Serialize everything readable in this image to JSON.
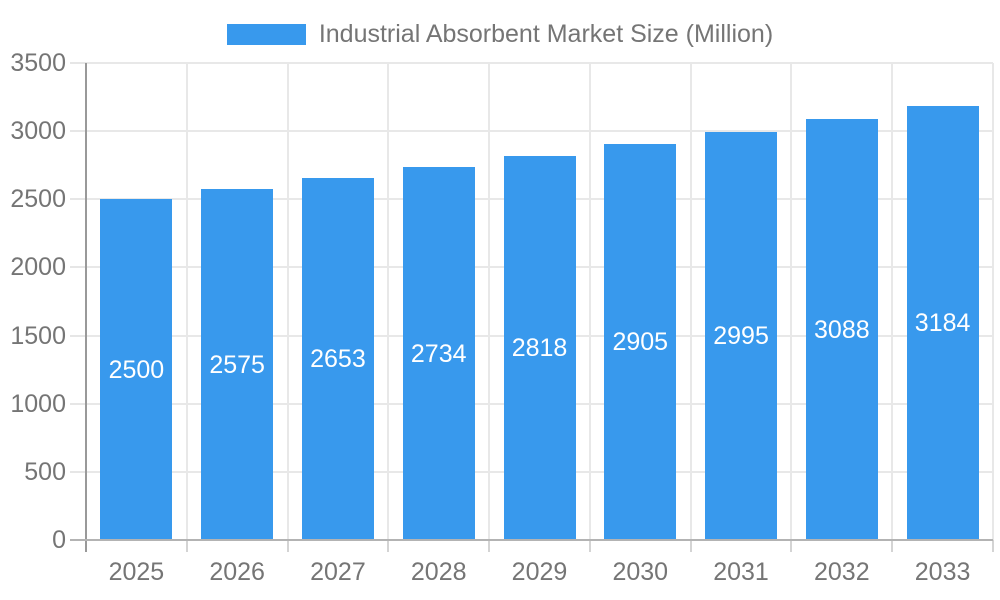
{
  "legend": {
    "label": "Industrial Absorbent Market Size (Million)"
  },
  "chart_data": {
    "type": "bar",
    "title": "Industrial Absorbent Market Size (Million)",
    "series": [
      {
        "name": "Industrial Absorbent Market Size (Million)",
        "values": [
          2500,
          2575,
          2653,
          2734,
          2818,
          2905,
          2995,
          3088,
          3184
        ]
      }
    ],
    "categories": [
      "2025",
      "2026",
      "2027",
      "2028",
      "2029",
      "2030",
      "2031",
      "2032",
      "2033"
    ],
    "values": [
      2500,
      2575,
      2653,
      2734,
      2818,
      2905,
      2995,
      3088,
      3184
    ],
    "bar_value_labels": [
      "2500",
      "2575",
      "2653",
      "2734",
      "2818",
      "2905",
      "2995",
      "3088",
      "3184"
    ],
    "xlabel": "",
    "ylabel": "",
    "ylim": [
      0,
      3500
    ],
    "yticks": [
      0,
      500,
      1000,
      1500,
      2000,
      2500,
      3000,
      3500
    ],
    "grid": "on",
    "legend_position": "top-center"
  },
  "colors": {
    "bar": "#3899ED",
    "grid": "#e8e8e8",
    "axis_y": "#999999",
    "axis_x": "#b3b3b3",
    "tick_x": "#d4d4d4",
    "tick_y": "#e6e6e6",
    "text": "#757575",
    "bar_label": "#ffffff",
    "background": "#ffffff"
  }
}
